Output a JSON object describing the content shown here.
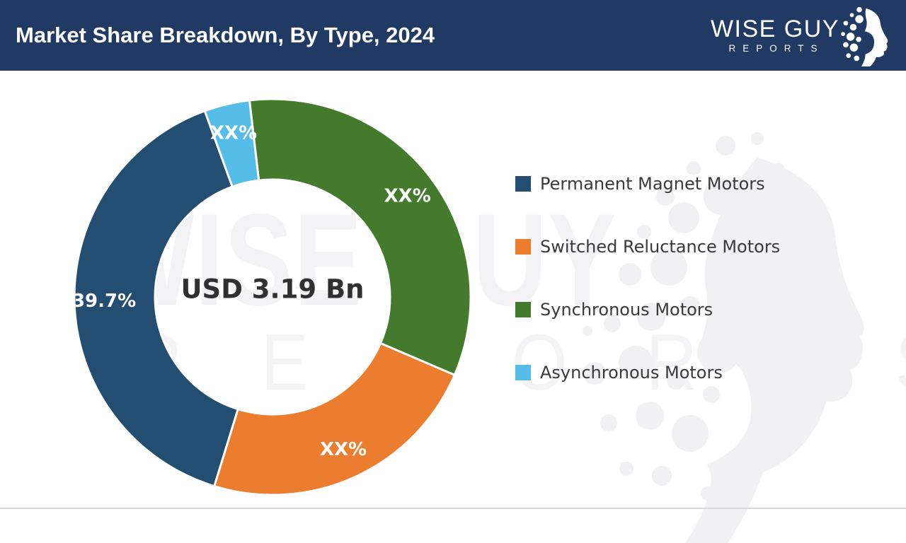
{
  "header": {
    "title": "Market Share Breakdown, By Type, 2024",
    "bg_color": "#213A64",
    "logo": {
      "line1": "WISE GUY",
      "line2": "REPORTS"
    }
  },
  "watermark": {
    "line1": "WISE GUY",
    "line2": "R E P O R T S"
  },
  "chart_data": {
    "type": "pie",
    "subtype": "donut",
    "title": "Market Share Breakdown, By Type, 2024",
    "center_label": "USD 3.19 Bn",
    "start_angle_deg": -20,
    "direction": "counterclockwise",
    "legend_position": "right",
    "slice_border_color": "#ffffff",
    "segments": [
      {
        "label": "Permanent Magnet Motors",
        "value": 39.7,
        "display_pct": "39.7%",
        "color": "#234E72"
      },
      {
        "label": "Switched Reluctance Motors",
        "value": 23.3,
        "display_pct": "XX%",
        "color": "#EC7D2E"
      },
      {
        "label": "Synchronous Motors",
        "value": 33.3,
        "display_pct": "XX%",
        "color": "#447A2C"
      },
      {
        "label": "Asynchronous Motors",
        "value": 3.7,
        "display_pct": "XX%",
        "color": "#55BDE8"
      }
    ]
  }
}
